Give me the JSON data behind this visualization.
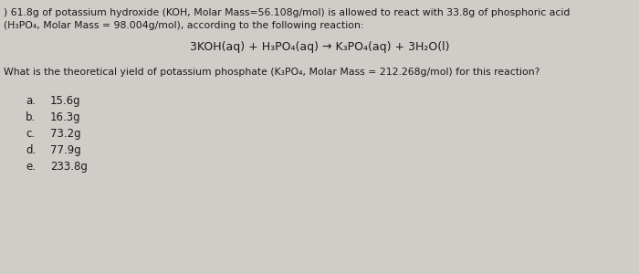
{
  "background_color": "#d0cdc8",
  "text_color": "#1a1a1a",
  "figsize": [
    7.0,
    3.0
  ],
  "dpi": 100,
  "line1": ") 61.8g of potassium hydroxide (KOH, Molar Mass=56.108g/mol) is allowed to react with 33.8g of phosphoric acid",
  "line2": "(H₃PO₄, Molar Mass = 98.004g/mol), according to the following reaction:",
  "reaction": "3KOH(aq) + H₃PO₄(aq) → K₃PO₄(aq) + 3H₂O(l)",
  "question": "What is the theoretical yield of potassium phosphate (K₃PO₄, Molar Mass = 212.268g/mol) for this reaction?",
  "choices": [
    [
      "a.",
      "15.6g"
    ],
    [
      "b.",
      "16.3g"
    ],
    [
      "c.",
      "73.2g"
    ],
    [
      "d.",
      "77.9g"
    ],
    [
      "e.",
      "233.8g"
    ]
  ],
  "font_size_body": 7.8,
  "font_size_reaction": 9.0,
  "font_size_question": 7.8,
  "font_size_choices": 8.5
}
